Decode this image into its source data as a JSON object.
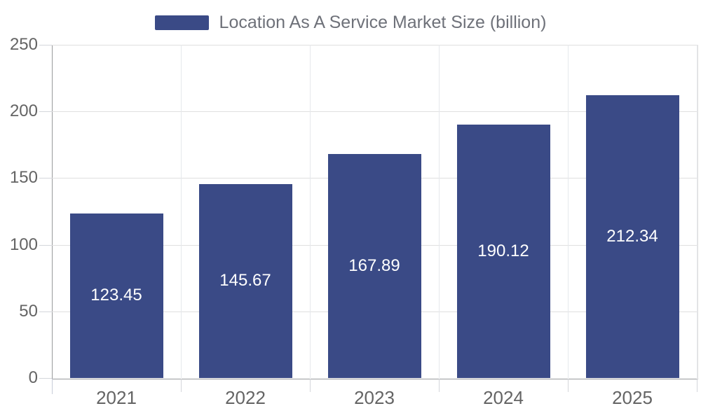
{
  "legend": {
    "label": "Location As A Service Market Size (billion)"
  },
  "colors": {
    "bar": "#3a4a86",
    "bar_label_text": "#ffffff",
    "axis_line": "#98999c",
    "gridline": "#e0e0e0",
    "axis_text": "#646464",
    "legend_text": "#6e7179",
    "background": "#ffffff"
  },
  "chart_data": {
    "type": "bar",
    "title": "Location As A Service Market Size (billion)",
    "categories": [
      "2021",
      "2022",
      "2023",
      "2024",
      "2025"
    ],
    "values": [
      123.45,
      145.67,
      167.89,
      190.12,
      212.34
    ],
    "value_labels": [
      "123.45",
      "145.67",
      "167.89",
      "190.12",
      "212.34"
    ],
    "xlabel": "",
    "ylabel": "",
    "ylim": [
      0,
      250
    ],
    "yticks": [
      0,
      50,
      100,
      150,
      200,
      250
    ],
    "grid": true,
    "value_label_position": "inside-center",
    "legend_position": "top-center",
    "bar_color": "#3a4a86"
  }
}
